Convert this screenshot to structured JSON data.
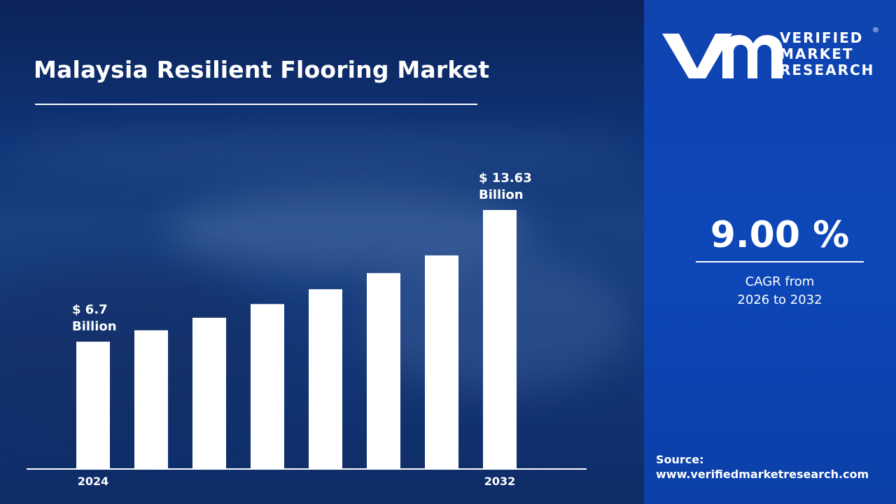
{
  "title": "Malaysia Resilient Flooring Market",
  "brand": {
    "line1": "VERIFIED",
    "line2": "MARKET",
    "line3": "RESEARCH",
    "registered_mark": "®",
    "color": "#0d47b8"
  },
  "cagr": {
    "value": "9.00 %",
    "label_line1": "CAGR from",
    "label_line2": "2026 to 2032"
  },
  "source": {
    "label": "Source:",
    "url": "www.verifiedmarketresearch.com"
  },
  "chart_data": {
    "type": "bar",
    "categories": [
      "2024",
      "",
      "",
      "",
      "",
      "",
      "",
      "2032"
    ],
    "values": [
      6.7,
      7.3,
      7.96,
      8.68,
      9.46,
      10.31,
      11.24,
      13.63
    ],
    "annotations": [
      {
        "index": 0,
        "line1": "$ 6.7",
        "line2": "Billion"
      },
      {
        "index": 7,
        "line1": "$ 13.63",
        "line2": "Billion"
      }
    ],
    "bar_color": "#ffffff",
    "grid": false
  }
}
